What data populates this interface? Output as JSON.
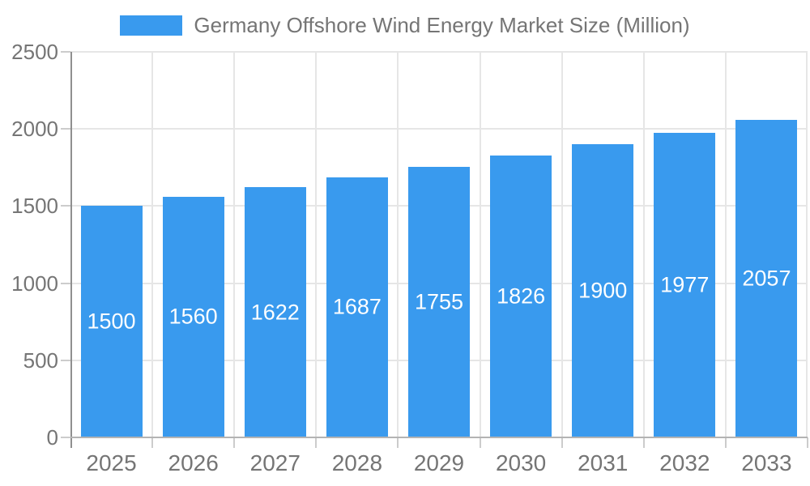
{
  "chart_data": {
    "type": "bar",
    "title": "Germany Offshore Wind Energy Market Size (Million)",
    "legend_position": "top",
    "grid": true,
    "categories": [
      "2025",
      "2026",
      "2027",
      "2028",
      "2029",
      "2030",
      "2031",
      "2032",
      "2033"
    ],
    "series": [
      {
        "name": "Germany Offshore Wind Energy Market Size (Million)",
        "values": [
          1500,
          1560,
          1622,
          1687,
          1755,
          1826,
          1900,
          1977,
          2057
        ]
      }
    ],
    "xlabel": "",
    "ylabel": "",
    "ylim": [
      0,
      2500
    ],
    "y_ticks": [
      0,
      500,
      1000,
      1500,
      2000,
      2500
    ],
    "bar_color": "#399AEE",
    "bar_label_color": "#ffffff",
    "axis_label_color": "#757575",
    "gridline_color": "#e6e6e6"
  }
}
